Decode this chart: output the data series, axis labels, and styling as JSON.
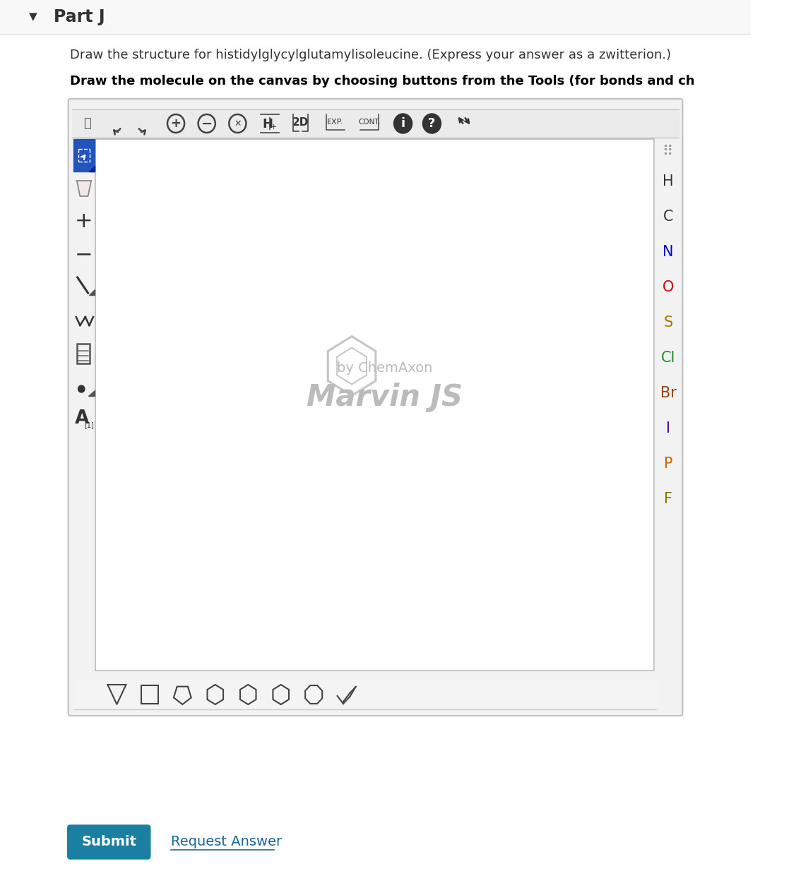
{
  "title": "Part J",
  "problem_text": "Draw the structure for histidylglycylglutamylisoleucine. (Express your answer as a zwitterion.)",
  "instruction_text": "Draw the molecule on the canvas by choosing buttons from the Tools (for bonds and ch",
  "bg_color": "#ffffff",
  "panel_bg": "#f5f5f5",
  "canvas_bg": "#ffffff",
  "header_bg": "#ffffff",
  "border_color": "#cccccc",
  "right_panel_elements": [
    {
      "label": "H",
      "color": "#333333"
    },
    {
      "label": "C",
      "color": "#333333"
    },
    {
      "label": "N",
      "color": "#0000cc"
    },
    {
      "label": "O",
      "color": "#cc0000"
    },
    {
      "label": "S",
      "color": "#aa7700"
    },
    {
      "label": "Cl",
      "color": "#228b22"
    },
    {
      "label": "Br",
      "color": "#8b4513"
    },
    {
      "label": "I",
      "color": "#5b0a91"
    },
    {
      "label": "P",
      "color": "#cc6600"
    },
    {
      "label": "F",
      "color": "#887700"
    }
  ],
  "marvin_text": "Marvin JS",
  "marvin_sub": "by ChemAxon",
  "submit_color": "#1a7fa0",
  "submit_text": "Submit",
  "request_text": "Request Answer",
  "request_color": "#1a6699"
}
